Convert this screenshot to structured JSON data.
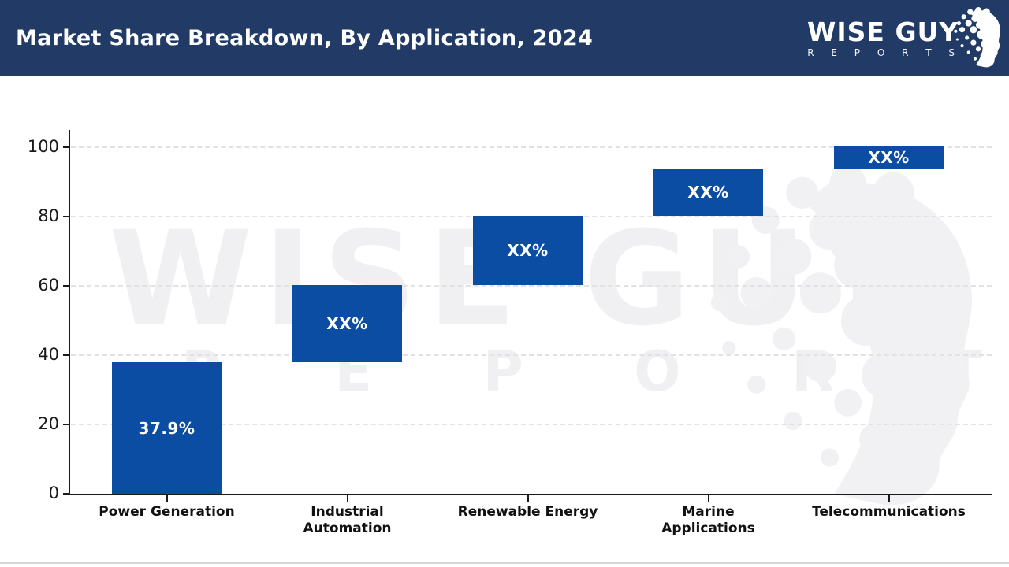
{
  "header": {
    "title": "Market Share Breakdown, By Application, 2024",
    "logo": {
      "line1": "WISE GUY",
      "line2": "R E P O R T S"
    }
  },
  "watermark": {
    "line1": "WISE GUY",
    "line2": "R E P O R T S"
  },
  "colors": {
    "header_bg": "#213a66",
    "bar": "#0b4da2",
    "bar_label": "#ffffff",
    "grid": "#e2e2e2",
    "axis": "#1a1a1a",
    "watermark": "#f0f0f2",
    "bottom_rule": "#d6d6d6"
  },
  "chart_data": {
    "type": "bar",
    "subtype": "waterfall",
    "title": "Market Share Breakdown, By Application, 2024",
    "xlabel": "",
    "ylabel": "",
    "ylim": [
      0,
      100
    ],
    "yticks": [
      0,
      20,
      40,
      60,
      80,
      100
    ],
    "grid": "horizontal-dashed",
    "legend": "none",
    "categories": [
      "Power Generation",
      "Industrial\nAutomation",
      "Renewable Energy",
      "Marine\nApplications",
      "Telecommunications"
    ],
    "segments": [
      {
        "category": "Power Generation",
        "start": 0,
        "end": 37.9,
        "label": "37.9%"
      },
      {
        "category": "Industrial Automation",
        "start": 37.9,
        "end": 60.2,
        "label": "XX%"
      },
      {
        "category": "Renewable Energy",
        "start": 60.2,
        "end": 80.2,
        "label": "XX%"
      },
      {
        "category": "Marine Applications",
        "start": 80.2,
        "end": 93.9,
        "label": "XX%"
      },
      {
        "category": "Telecommunications",
        "start": 93.9,
        "end": 100.4,
        "label": "XX%"
      }
    ]
  }
}
